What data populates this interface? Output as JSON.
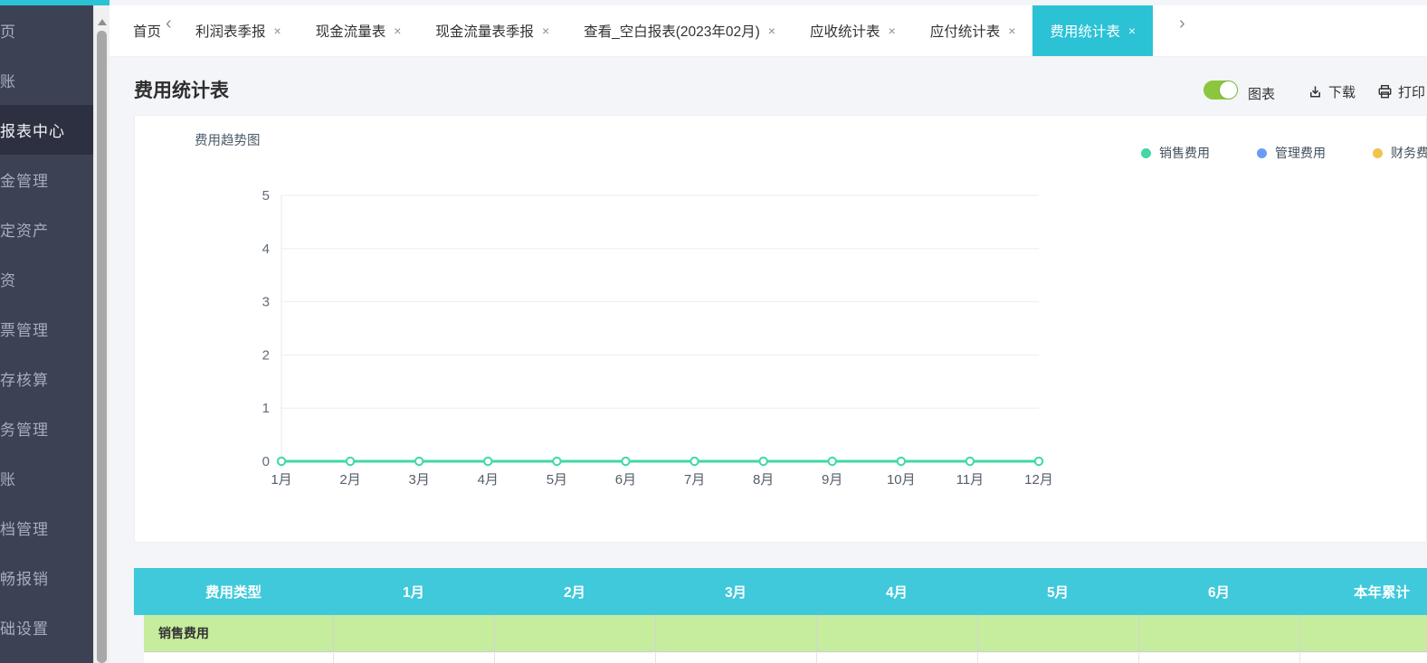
{
  "topbar": {
    "tabs": [
      {
        "label": "首页",
        "closable": false,
        "active": false
      },
      {
        "label": "利润表季报",
        "closable": true,
        "active": false
      },
      {
        "label": "现金流量表",
        "closable": true,
        "active": false
      },
      {
        "label": "现金流量表季报",
        "closable": true,
        "active": false
      },
      {
        "label": "查看_空白报表(2023年02月)",
        "closable": true,
        "active": false
      },
      {
        "label": "应收统计表",
        "closable": true,
        "active": false
      },
      {
        "label": "应付统计表",
        "closable": true,
        "active": false
      },
      {
        "label": "费用统计表",
        "closable": true,
        "active": true
      }
    ]
  },
  "sidebar": {
    "items": [
      {
        "label": "页",
        "active": false
      },
      {
        "label": "账",
        "active": false
      },
      {
        "label": "报表中心",
        "active": true
      },
      {
        "label": "金管理",
        "active": false
      },
      {
        "label": "定资产",
        "active": false
      },
      {
        "label": "资",
        "active": false
      },
      {
        "label": "票管理",
        "active": false
      },
      {
        "label": "存核算",
        "active": false
      },
      {
        "label": "务管理",
        "active": false
      },
      {
        "label": "账",
        "active": false
      },
      {
        "label": "档管理",
        "active": false
      },
      {
        "label": "畅报销",
        "active": false
      },
      {
        "label": "础设置",
        "active": false
      }
    ]
  },
  "page": {
    "title": "费用统计表"
  },
  "controls": {
    "chart_toggle_label": "图表",
    "toggle_on": true,
    "download_label": "下载",
    "print_label": "打印"
  },
  "chart_data": {
    "type": "line",
    "title": "费用趋势图",
    "categories": [
      "1月",
      "2月",
      "3月",
      "4月",
      "5月",
      "6月",
      "7月",
      "8月",
      "9月",
      "10月",
      "11月",
      "12月"
    ],
    "series": [
      {
        "name": "销售费用",
        "color": "#42d8a6",
        "values": [
          0,
          0,
          0,
          0,
          0,
          0,
          0,
          0,
          0,
          0,
          0,
          0
        ]
      },
      {
        "name": "管理费用",
        "color": "#6b9bf8",
        "values": []
      },
      {
        "name": "财务费用",
        "color": "#f2c44d",
        "values": []
      }
    ],
    "ylim": [
      0,
      5
    ],
    "yticks": [
      0,
      1,
      2,
      3,
      4,
      5
    ],
    "grid": true,
    "legend_position": "top-right"
  },
  "table": {
    "columns": [
      "费用类型",
      "1月",
      "2月",
      "3月",
      "4月",
      "5月",
      "6月",
      "本年累计"
    ],
    "prev_arrow": "‹",
    "next_arrow": "›",
    "rows": [
      {
        "label": "销售费用",
        "cells": [
          "",
          "",
          "",
          "",
          "",
          "",
          ""
        ]
      },
      {
        "label": "",
        "cells": [
          "",
          "",
          "",
          "",
          "",
          "",
          ""
        ]
      }
    ]
  },
  "colors": {
    "accent_teal": "#2bc2d6",
    "table_header_teal": "#3fc9db",
    "row_green": "#c6ec9e",
    "toggle_green": "#8cc63f",
    "sidebar_bg": "#3c4154",
    "sidebar_active_bg": "#2c3040",
    "line_teal": "#42d8a6"
  }
}
